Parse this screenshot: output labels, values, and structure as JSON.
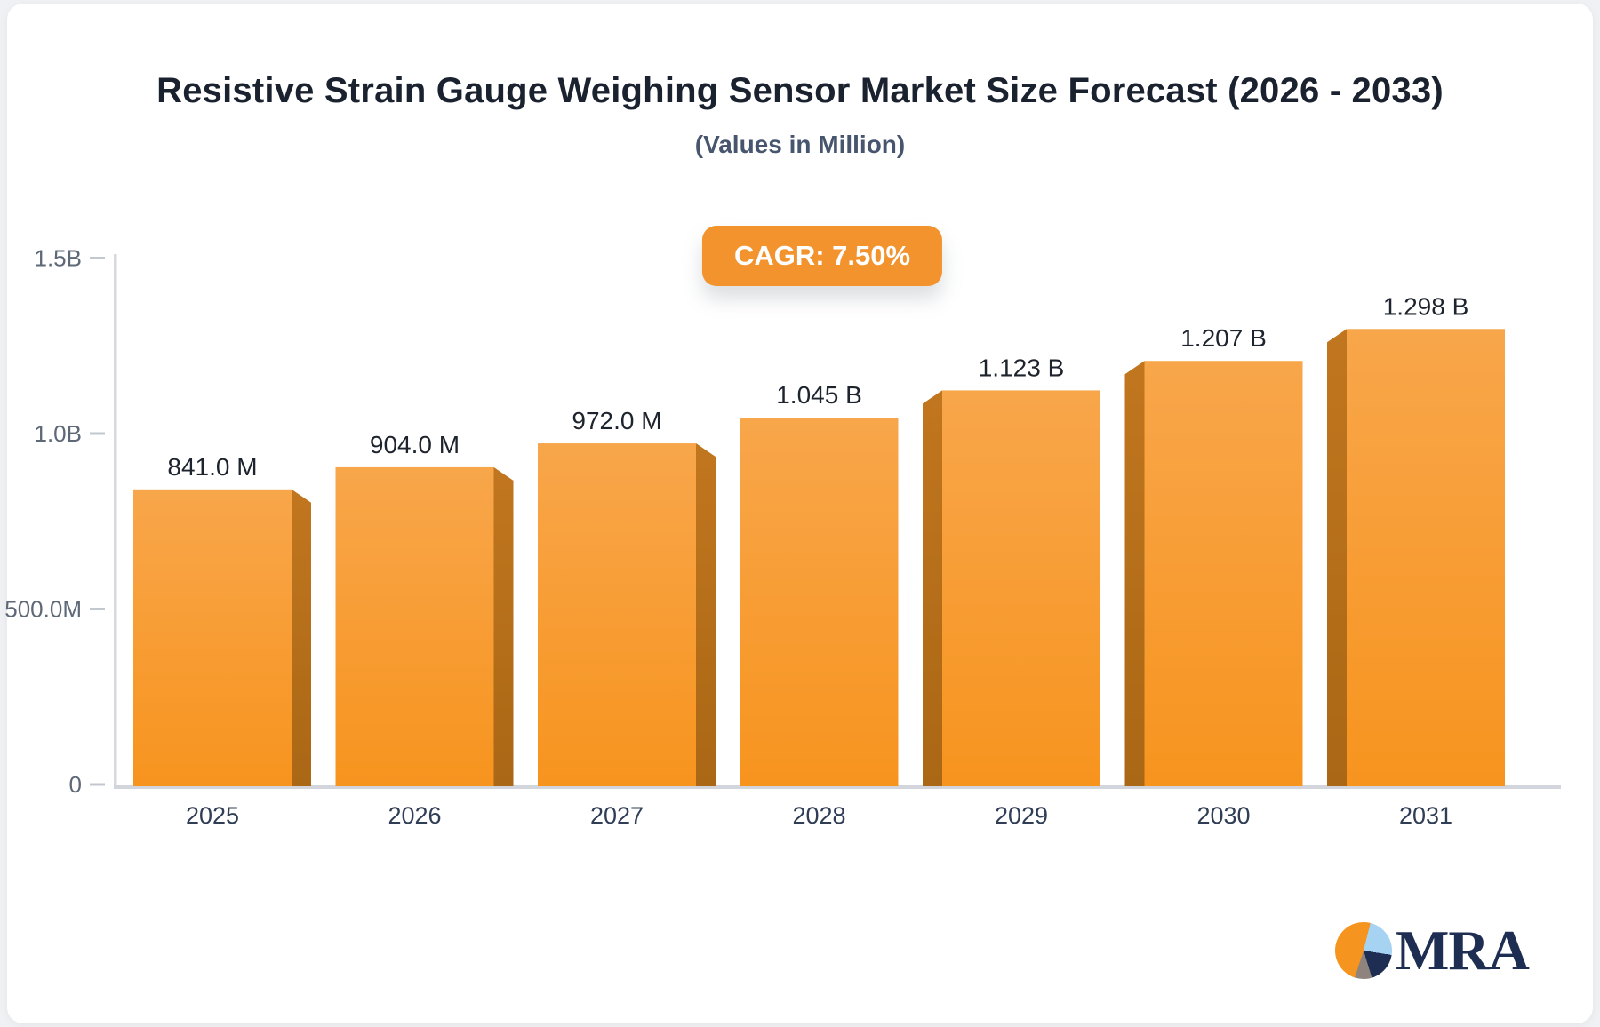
{
  "header": {
    "title": "Resistive Strain Gauge Weighing Sensor Market Size Forecast (2026 - 2033)",
    "subtitle": "(Values in Million)",
    "cagr_badge": "CAGR: 7.50%"
  },
  "logo": {
    "text": "MRA"
  },
  "colors": {
    "bar_face_top": "#f8a64b",
    "bar_face_bottom": "#f7941e",
    "bar_side_top": "#c1761e",
    "bar_side_bottom": "#aa6715",
    "badge_bg": "#f2932e",
    "badge_text": "#ffffff",
    "title_text": "#1a222f",
    "subtitle_text": "#47566e",
    "value_label": "#1e242e",
    "axis_label": "#5e6877",
    "year_label": "#2f3d55",
    "axis_line": "#d6d8dd",
    "baseline": "#d2d5db",
    "tick_mark": "#c3c8cf",
    "logo_navy": "#1e2d52",
    "logo_orange": "#f5941f",
    "logo_lightblue": "#a7d3f3",
    "logo_gray": "#8f847d"
  },
  "chart_data": {
    "type": "bar",
    "style": "3d-perspective-columns",
    "title": "Resistive Strain Gauge Weighing Sensor Market Size Forecast (2026 - 2033)",
    "subtitle": "(Values in Million)",
    "cagr": "7.50%",
    "categories": [
      "2025",
      "2026",
      "2027",
      "2028",
      "2029",
      "2030",
      "2031"
    ],
    "values": [
      841.0,
      904.0,
      972.0,
      1045,
      1123,
      1207,
      1298
    ],
    "unit": "Million",
    "value_labels": [
      "841.0 M",
      "904.0 M",
      "972.0 M",
      "1.045 B",
      "1.123 B",
      "1.207 B",
      "1.298 B"
    ],
    "xlabel": "",
    "ylabel": "",
    "ylim_millions": [
      0,
      1500
    ],
    "yticks": [
      {
        "value": 1500,
        "label": "1.5B"
      },
      {
        "value": 1000,
        "label": "1.0B"
      },
      {
        "value": 500,
        "label": "500.0M"
      },
      {
        "value": 0,
        "label": "0"
      }
    ],
    "grid": false,
    "legend": false
  }
}
